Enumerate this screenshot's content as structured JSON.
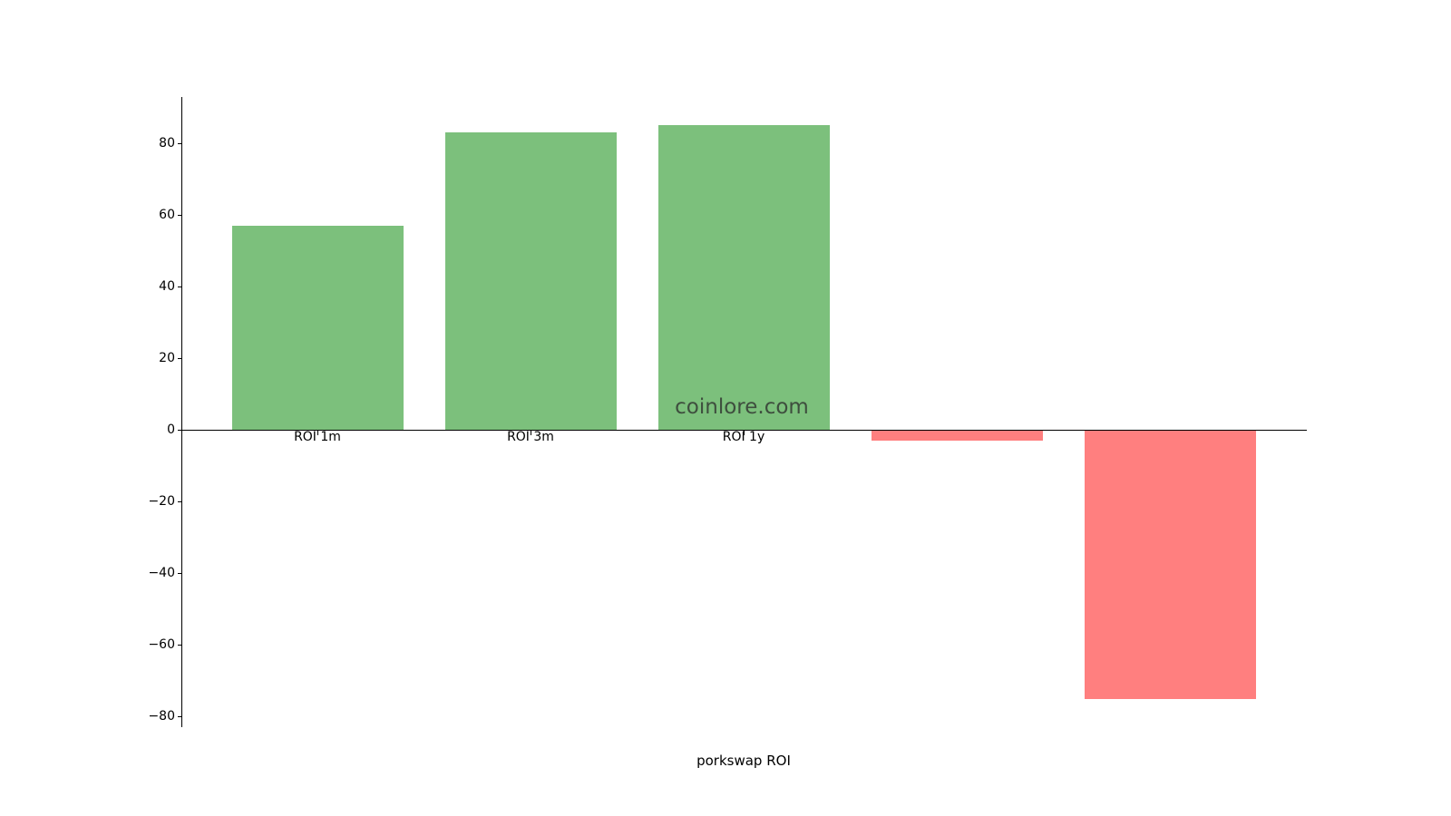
{
  "chart_data": {
    "type": "bar",
    "categories": [
      "ROI 1m",
      "ROI 3m",
      "ROI 1y",
      "",
      ""
    ],
    "values": [
      57,
      83,
      85,
      -2.8,
      -75
    ],
    "title": "",
    "xlabel": "porkswap ROI",
    "ylabel": "",
    "ylim": [
      -83,
      93
    ],
    "yticks": [
      80,
      60,
      40,
      20,
      0,
      -20,
      -40,
      -60,
      -80
    ],
    "grid": false,
    "legend": "none",
    "colors": {
      "positive_bar": "#7cc07c",
      "negative_bar": "#ff7f7f",
      "axis": "#000000",
      "tick_text": "#000000",
      "watermark_text": "#3e4e3e"
    },
    "watermark": "coinlore.com"
  }
}
